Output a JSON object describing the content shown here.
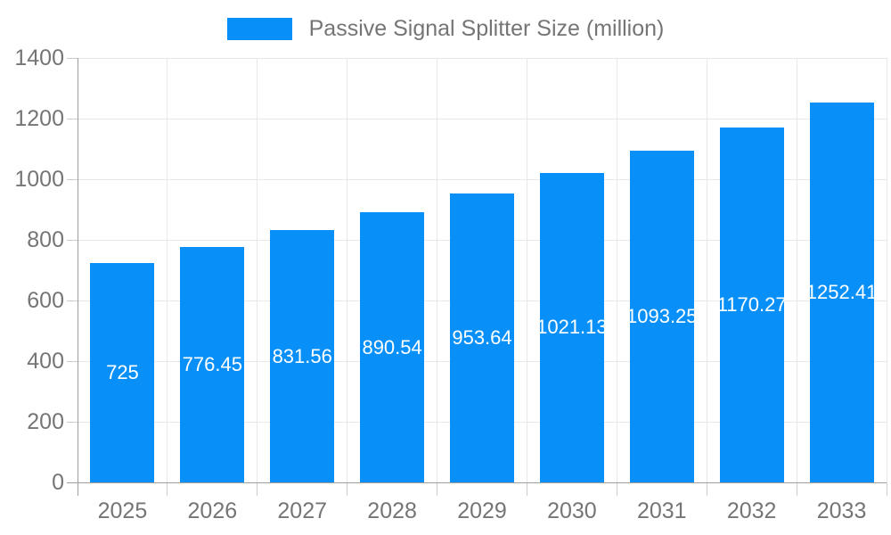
{
  "chart_data": {
    "type": "bar",
    "title": "Passive Signal Splitter Size (million)",
    "legend": {
      "label": "Passive Signal Splitter Size (million)",
      "position": "top-center"
    },
    "categories": [
      "2025",
      "2026",
      "2027",
      "2028",
      "2029",
      "2030",
      "2031",
      "2032",
      "2033"
    ],
    "series": [
      {
        "name": "Passive Signal Splitter Size (million)",
        "values": [
          725,
          776.45,
          831.56,
          890.54,
          953.64,
          1021.13,
          1093.25,
          1170.27,
          1252.41
        ],
        "labels": [
          "725",
          "776.45",
          "831.56",
          "890.54",
          "953.64",
          "1021.13",
          "1093.25",
          "1170.27",
          "1252.41"
        ]
      }
    ],
    "xlabel": "",
    "ylabel": "",
    "ylim": [
      0,
      1400
    ],
    "yticks": [
      0,
      200,
      400,
      600,
      800,
      1000,
      1200,
      1400
    ],
    "grid": true,
    "colors": {
      "bar": "#0890F8",
      "grid": "#e8e8e8",
      "axis": "#9e9e9e",
      "tick": "#cccccc",
      "label_text": "#757575",
      "value_text": "#ffffff",
      "background": "#ffffff"
    }
  }
}
